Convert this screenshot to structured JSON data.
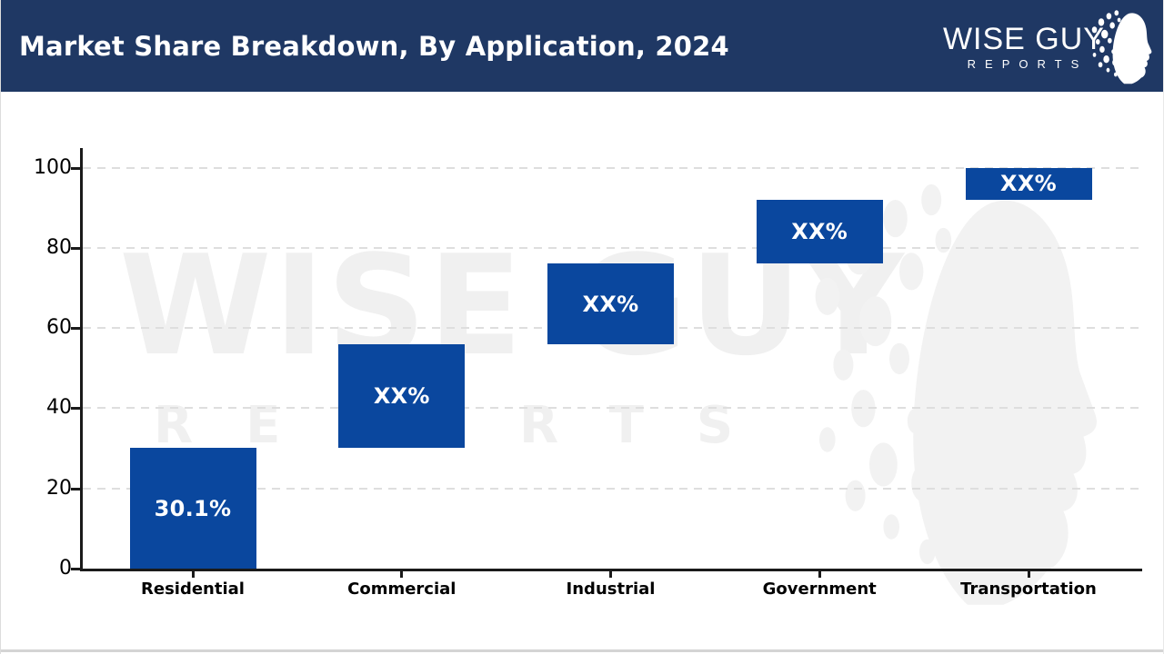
{
  "header": {
    "title": "Market Share Breakdown, By Application, 2024"
  },
  "logo": {
    "line1": "WISE GUY",
    "line2": "REPORTS",
    "face_icon": "dotted-head-profile"
  },
  "watermark": {
    "line1": "WISE GUY",
    "line2": "REPORTS",
    "face_icon": "dotted-head-profile"
  },
  "colors": {
    "header_bg": "#1f3864",
    "bar_fill": "#0a479e",
    "value_label": "#ffffff",
    "gridline": "#dedede",
    "axis": "#1a1a1a",
    "watermark": "#f0f0f0"
  },
  "chart_data": {
    "type": "bar",
    "subtype": "waterfall-stacked-share",
    "title": "Market Share Breakdown, By Application, 2024",
    "xlabel": "",
    "ylabel": "",
    "grid": true,
    "legend": false,
    "ylim": [
      0,
      104.5
    ],
    "yticks": [
      0,
      20,
      40,
      60,
      80,
      100
    ],
    "categories": [
      "Residential",
      "Commercial",
      "Industrial",
      "Government",
      "Transportation"
    ],
    "segments": [
      {
        "category": "Residential",
        "start": 0,
        "end": 30.1,
        "label": "30.1%"
      },
      {
        "category": "Commercial",
        "start": 30.1,
        "end": 56,
        "label": "XX%"
      },
      {
        "category": "Industrial",
        "start": 56,
        "end": 76,
        "label": "XX%"
      },
      {
        "category": "Government",
        "start": 76,
        "end": 92,
        "label": "XX%"
      },
      {
        "category": "Transportation",
        "start": 92,
        "end": 100,
        "label": "XX%"
      }
    ]
  }
}
